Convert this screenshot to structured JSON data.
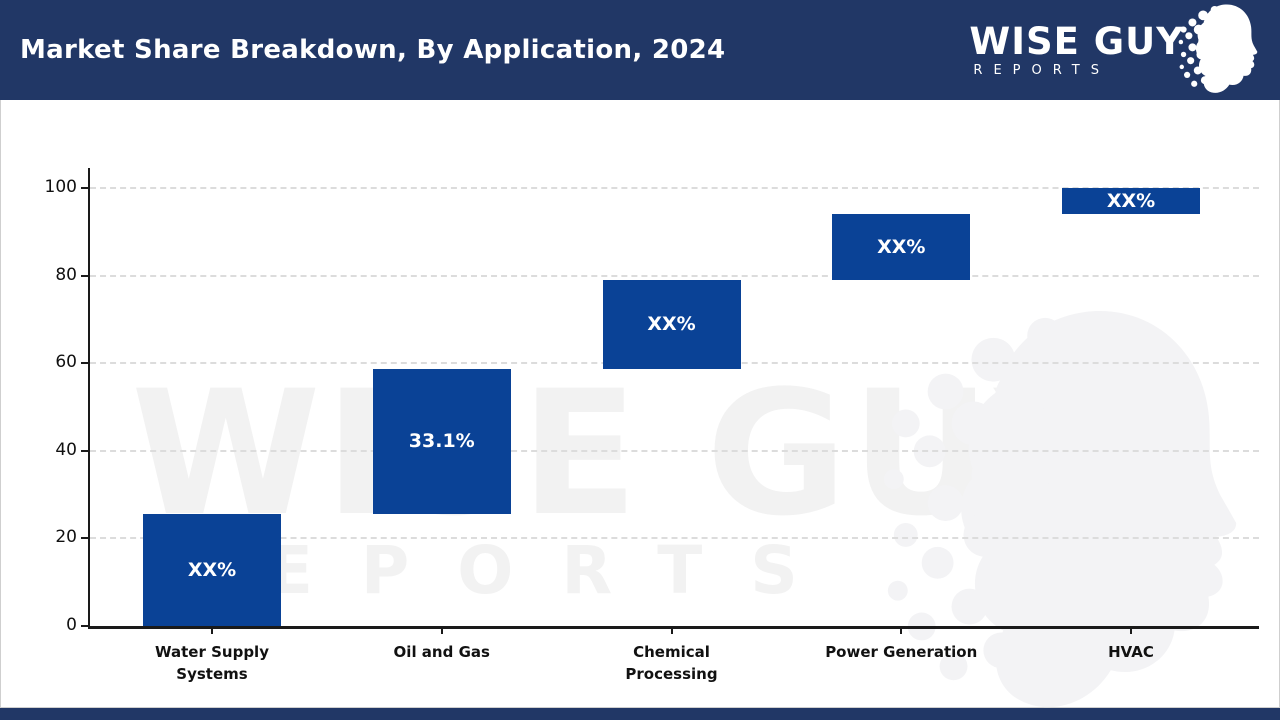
{
  "header": {
    "title": "Market Share Breakdown, By Application, 2024",
    "logo": {
      "name": "WISE GUY",
      "tagline": "REPORTS"
    }
  },
  "watermark": {
    "name": "WISE GUY",
    "tagline": "REPORTS"
  },
  "chart_data": {
    "type": "bar",
    "subtype": "waterfall",
    "title": "Market Share Breakdown, By Application, 2024",
    "categories": [
      "Water Supply Systems",
      "Oil and Gas",
      "Chemical Processing",
      "Power Generation",
      "HVAC"
    ],
    "segments": [
      {
        "category": "Water Supply Systems",
        "label_lines": [
          "Water Supply",
          "Systems"
        ],
        "start": 0,
        "end": 25.5,
        "value_label": "XX%"
      },
      {
        "category": "Oil and Gas",
        "label_lines": [
          "Oil and Gas"
        ],
        "start": 25.5,
        "end": 58.6,
        "value": 33.1,
        "value_label": "33.1%"
      },
      {
        "category": "Chemical Processing",
        "label_lines": [
          "Chemical",
          "Processing"
        ],
        "start": 58.6,
        "end": 79.0,
        "value_label": "XX%"
      },
      {
        "category": "Power Generation",
        "label_lines": [
          "Power Generation"
        ],
        "start": 79.0,
        "end": 94.0,
        "value_label": "XX%"
      },
      {
        "category": "HVAC",
        "label_lines": [
          "HVAC"
        ],
        "start": 94.0,
        "end": 100.0,
        "value_label": "XX%"
      }
    ],
    "y_ticks": [
      0,
      20,
      40,
      60,
      80,
      100
    ],
    "ylim": [
      0,
      104.5
    ],
    "xlabel": "",
    "ylabel": "",
    "legend": "none",
    "grid": {
      "axis": "y",
      "style": "dashed",
      "color": "#dcdcdc"
    },
    "bar_color": "#0a4296",
    "value_label_color": "#ffffff"
  },
  "colors": {
    "header_bg": "#213766",
    "footer_bg": "#213766",
    "bar": "#0a4296",
    "watermark": "#f2f2f2",
    "axis": "#1a1a1a"
  }
}
